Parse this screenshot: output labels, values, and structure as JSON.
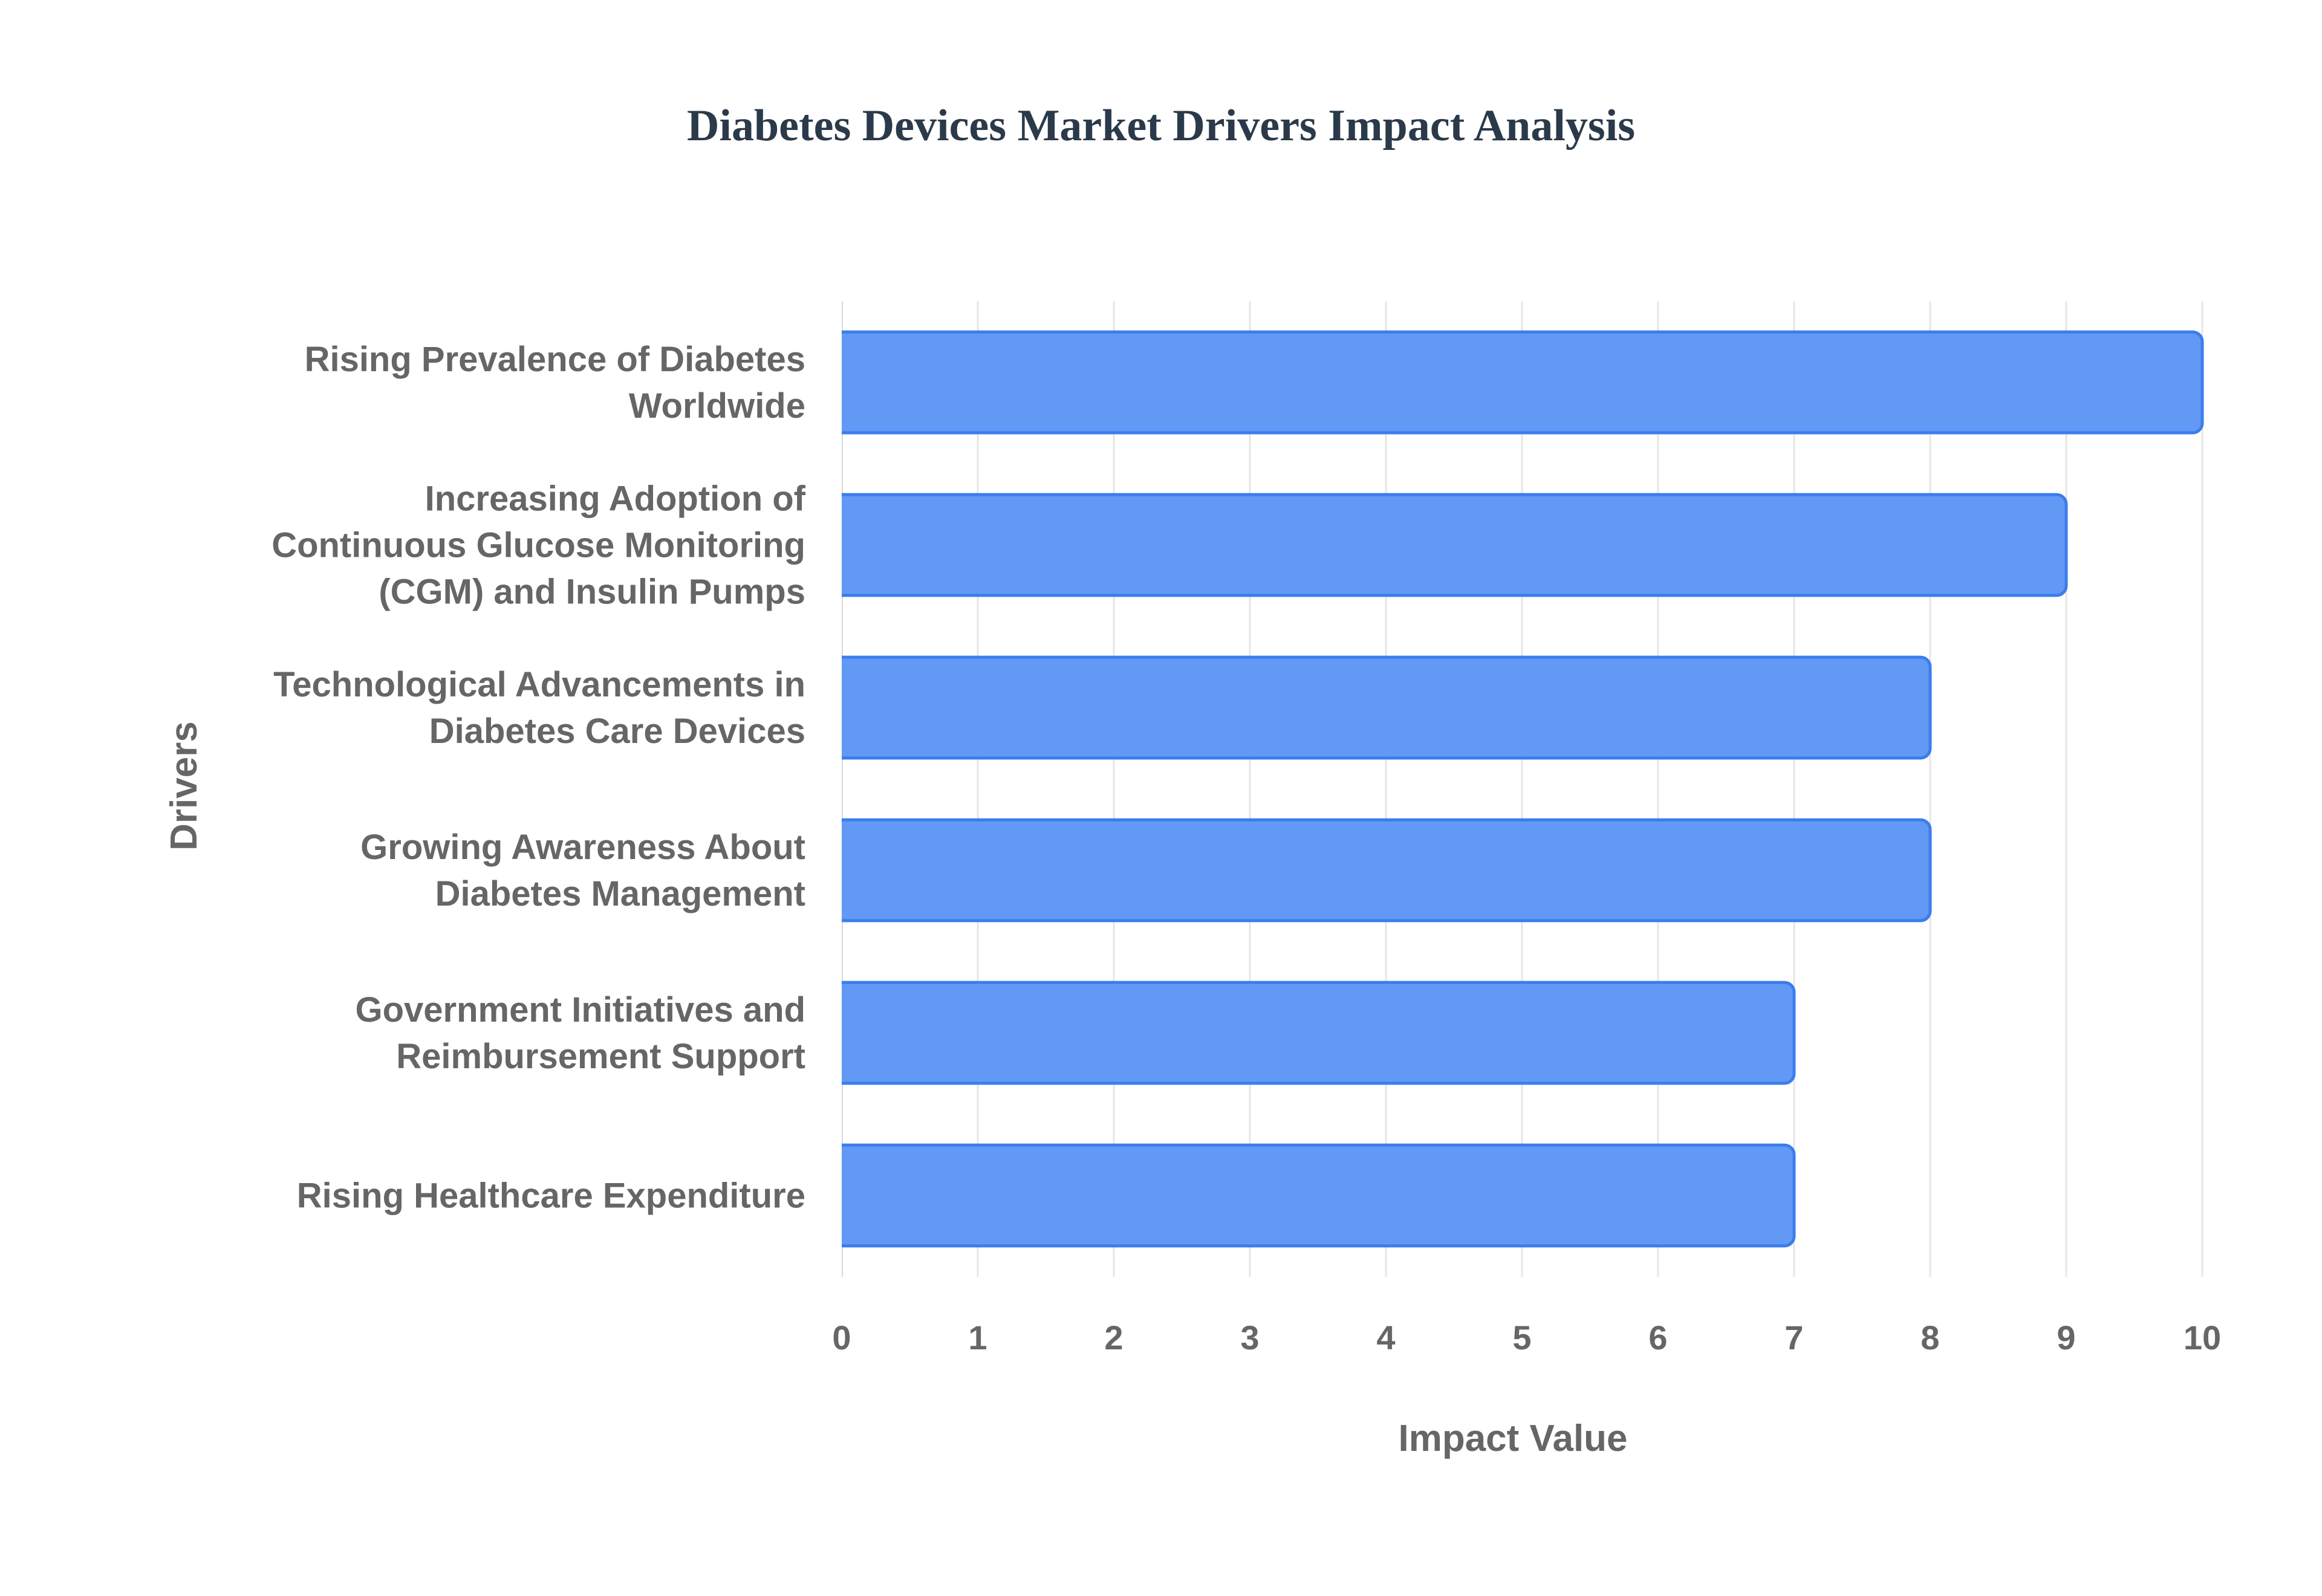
{
  "chart_data": {
    "type": "bar",
    "orientation": "horizontal",
    "title": "Diabetes Devices Market Drivers Impact Analysis",
    "xlabel": "Impact Value",
    "ylabel": "Drivers",
    "xlim": [
      0,
      10
    ],
    "x_ticks": [
      "0",
      "1",
      "2",
      "3",
      "4",
      "5",
      "6",
      "7",
      "8",
      "9",
      "10"
    ],
    "grid": true,
    "legend": "none",
    "categories": [
      [
        "Rising Prevalence of Diabetes",
        "Worldwide"
      ],
      [
        "Increasing Adoption of",
        "Continuous Glucose Monitoring",
        "(CGM) and Insulin Pumps"
      ],
      [
        "Technological Advancements in",
        "Diabetes Care Devices"
      ],
      [
        "Growing Awareness About",
        "Diabetes Management"
      ],
      [
        "Government Initiatives and",
        "Reimbursement Support"
      ],
      [
        "Rising Healthcare Expenditure"
      ]
    ],
    "values": [
      10,
      9,
      8,
      8,
      7,
      7
    ],
    "colors": {
      "bar_fill": "#6199f5",
      "bar_stroke": "#3b7ded",
      "grid": "#e6e6e6",
      "text": "#666666",
      "title": "#2b3a4a"
    }
  }
}
